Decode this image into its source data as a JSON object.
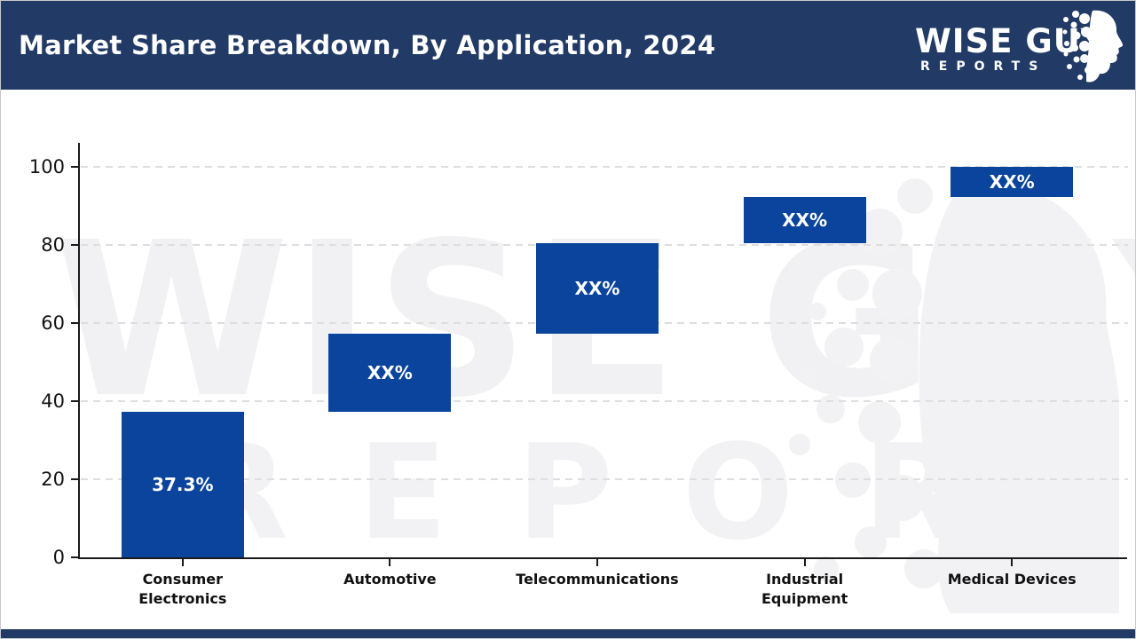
{
  "header": {
    "title": "Market Share Breakdown, By Application, 2024",
    "logo": {
      "line1": "WISE GUY",
      "line2": "REPORTS"
    }
  },
  "watermark": {
    "line1": "WISE GUY",
    "line2": "REPORTS"
  },
  "chart_data": {
    "type": "bar",
    "subtype": "waterfall",
    "title": "Market Share Breakdown, By Application, 2024",
    "categories": [
      "Consumer\nElectronics",
      "Automotive",
      "Telecommunications",
      "Industrial\nEquipment",
      "Medical Devices"
    ],
    "segments": [
      {
        "category": "Consumer Electronics",
        "start": 0,
        "end": 37.3,
        "label": "37.3%"
      },
      {
        "category": "Automotive",
        "start": 37.3,
        "end": 57.3,
        "label": "XX%"
      },
      {
        "category": "Telecommunications",
        "start": 57.3,
        "end": 80.5,
        "label": "XX%"
      },
      {
        "category": "Industrial Equipment",
        "start": 80.5,
        "end": 92.3,
        "label": "XX%"
      },
      {
        "category": "Medical Devices",
        "start": 92.3,
        "end": 100,
        "label": "XX%"
      }
    ],
    "yticks": [
      0,
      20,
      40,
      60,
      80,
      100
    ],
    "ylim": [
      0,
      106
    ],
    "grid": "horizontal-dashed",
    "legend": "none",
    "bar_color": "#0a449c",
    "bar_label_color": "#ffffff"
  },
  "colors": {
    "header_bg": "#213a66",
    "footer_bg": "#213a66",
    "bar": "#0a449c",
    "axis": "#1a1a1a",
    "grid": "#dedede",
    "watermark": "#f1f1f4"
  }
}
